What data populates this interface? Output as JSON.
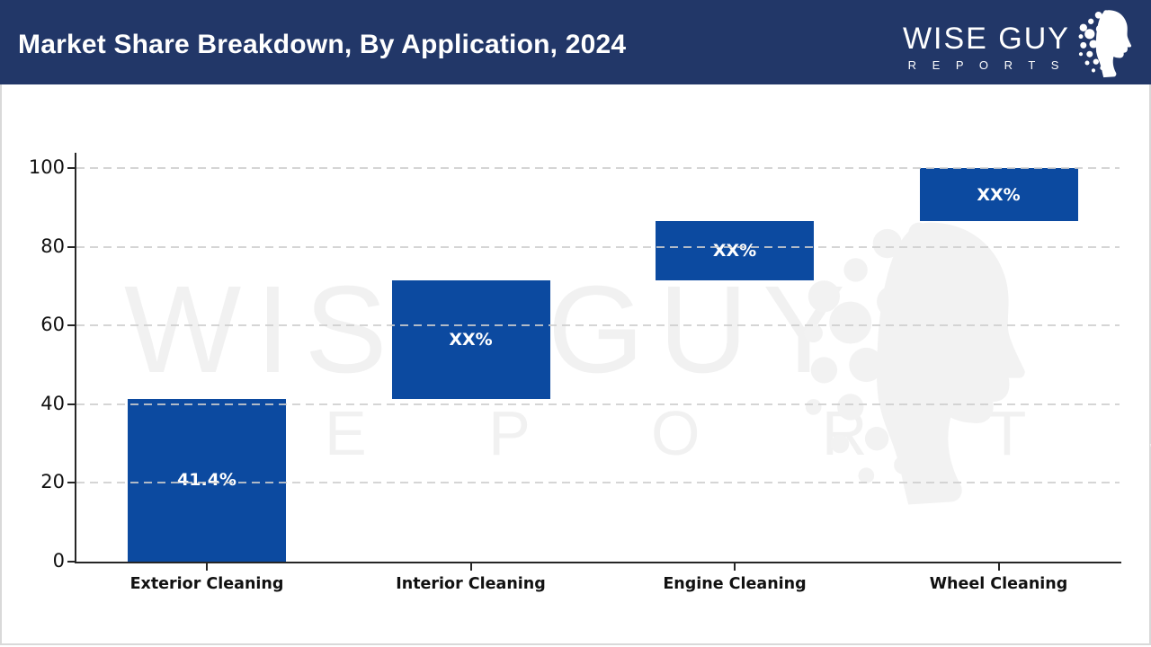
{
  "header": {
    "title": "Market Share Breakdown, By Application, 2024",
    "logo": {
      "line1": "WISE GUY",
      "line2": "R E P O R T S"
    }
  },
  "watermark": {
    "line1": "WISE GUY",
    "line2": "R E P O R T S"
  },
  "chart_data": {
    "type": "bar",
    "subtype": "waterfall",
    "title": "Market Share Breakdown, By Application, 2024",
    "categories": [
      "Exterior Cleaning",
      "Interior Cleaning",
      "Engine Cleaning",
      "Wheel Cleaning"
    ],
    "bars": [
      {
        "category": "Exterior Cleaning",
        "start": 0,
        "end": 41.4,
        "label": "41.4%"
      },
      {
        "category": "Interior Cleaning",
        "start": 41.4,
        "end": 71.5,
        "label": "XX%"
      },
      {
        "category": "Engine Cleaning",
        "start": 71.5,
        "end": 86.5,
        "label": "XX%"
      },
      {
        "category": "Wheel Cleaning",
        "start": 86.5,
        "end": 100,
        "label": "XX%"
      }
    ],
    "ylim": [
      0,
      100
    ],
    "yticks": [
      0,
      20,
      40,
      60,
      80,
      100
    ],
    "grid": "dashed-horizontal-on-top",
    "legend": "none",
    "bar_color": "#0c4aa0",
    "bar_label_color": "#ffffff",
    "header_bg_color": "#223768",
    "watermark_color": "#f1f1f1"
  }
}
